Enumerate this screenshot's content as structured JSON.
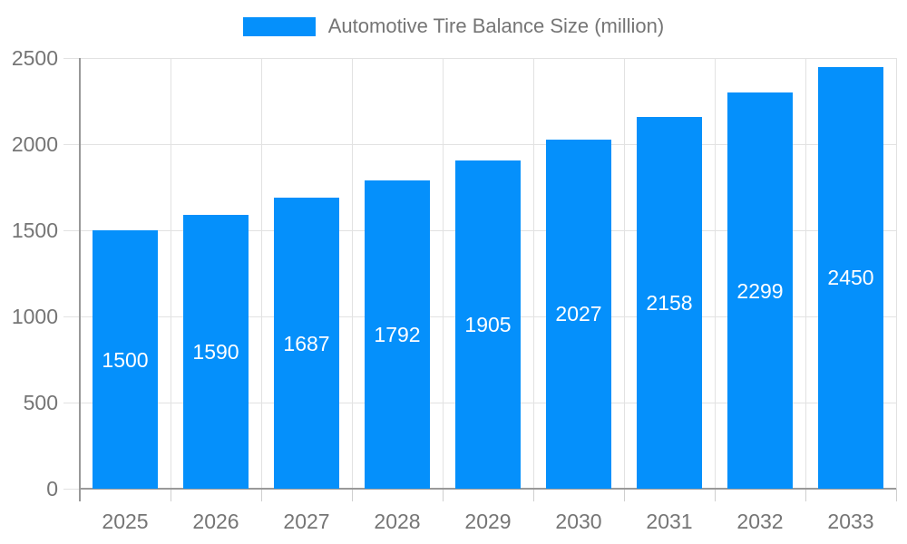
{
  "legend": {
    "label": "Automotive Tire Balance Size (million)",
    "swatch_color": "#0590fb",
    "position": "top"
  },
  "chart_data": {
    "type": "bar",
    "title": "Automotive Tire Balance Size (million)",
    "series_name": "Automotive Tire Balance Size (million)",
    "categories": [
      "2025",
      "2026",
      "2027",
      "2028",
      "2029",
      "2030",
      "2031",
      "2032",
      "2033"
    ],
    "values": [
      1500,
      1590,
      1687,
      1792,
      1905,
      2027,
      2158,
      2299,
      2450
    ],
    "value_labels_shown": true,
    "xlabel": "",
    "ylabel": "",
    "ylim": [
      0,
      2500
    ],
    "yticks": [
      0,
      500,
      1000,
      1500,
      2000,
      2500
    ],
    "grid": true,
    "legend_position": "top",
    "colors": {
      "bar": "#0590fb",
      "gridline": "#e2e2e2",
      "axis": "#999999",
      "minor_tick": "#cfcfcf",
      "axis_text": "#757575",
      "value_label": "#ffffff",
      "background": "#ffffff"
    }
  }
}
